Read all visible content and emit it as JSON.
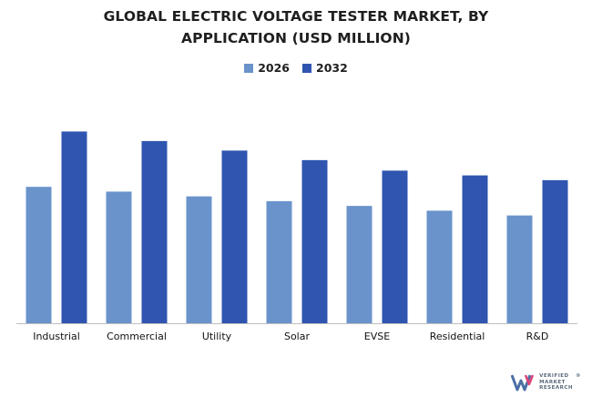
{
  "chart_data": {
    "type": "bar",
    "title_lines": [
      "GLOBAL ELECTRIC VOLTAGE TESTER MARKET, BY",
      "APPLICATION (USD MILLION)"
    ],
    "categories": [
      "Industrial",
      "Commercial",
      "Utility",
      "Solar",
      "EVSE",
      "Residential",
      "R&D"
    ],
    "series": [
      {
        "name": "2026",
        "color": "#6a93cb",
        "values": [
          143,
          138,
          133,
          128,
          123,
          118,
          113
        ]
      },
      {
        "name": "2032",
        "color": "#2f55b0",
        "values": [
          201,
          191,
          181,
          171,
          160,
          155,
          150
        ]
      }
    ],
    "ylim": [
      0,
      210
    ],
    "grid": false,
    "legend_position": "top-center",
    "xlabel": "",
    "ylabel": ""
  },
  "brand": {
    "logo": "vmr-logo",
    "lines": [
      "VERIFIED",
      "MARKET",
      "RESEARCH"
    ],
    "mark": "®"
  }
}
